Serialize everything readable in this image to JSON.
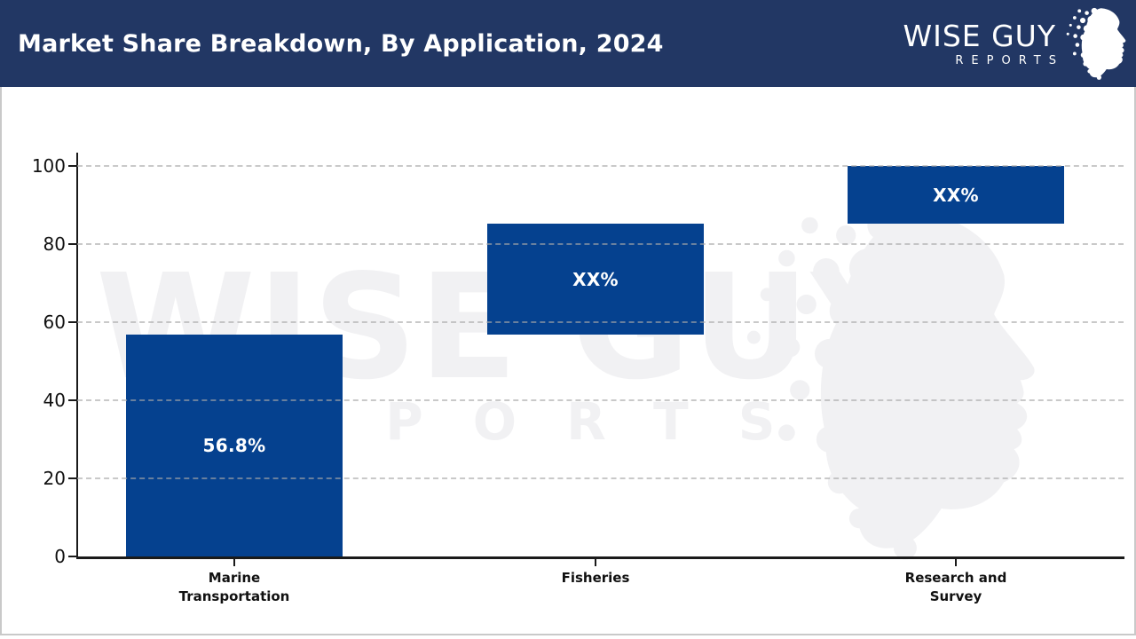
{
  "header": {
    "title": "Market Share Breakdown, By Application, 2024",
    "logo": {
      "brand": "WISE GUY",
      "sub": "REPORTS",
      "icon": "dotted-profile-head-icon"
    }
  },
  "watermark": {
    "brand": "WISE GUY",
    "sub": "REPORTS",
    "icon": "dotted-profile-head-icon"
  },
  "colors": {
    "header_bg": "#223764",
    "bar": "#05418f",
    "bar_label": "#ffffff",
    "gridline": "#c8c8c8",
    "axis": "#1a1a1a",
    "tick_label": "#111111",
    "watermark": "#f1f1f3"
  },
  "chart_data": {
    "type": "bar",
    "subtype": "stacked-waterfall-percentage",
    "title": "Market Share Breakdown, By Application, 2024",
    "categories": [
      [
        "Marine",
        "Transportation"
      ],
      [
        "Fisheries"
      ],
      [
        "Research and",
        "Survey"
      ]
    ],
    "bars": [
      {
        "category": "Marine Transportation",
        "start": 0,
        "end": 56.8,
        "label": "56.8%"
      },
      {
        "category": "Fisheries",
        "start": 56.8,
        "end": 85.2,
        "label": "XX%"
      },
      {
        "category": "Research and Survey",
        "start": 85.2,
        "end": 100,
        "label": "XX%"
      }
    ],
    "xlabel": "",
    "ylabel": "",
    "ylim": [
      0,
      100
    ],
    "yticks": [
      0,
      20,
      40,
      60,
      80,
      100
    ],
    "grid": "horizontal-dashed",
    "legend": "none"
  }
}
